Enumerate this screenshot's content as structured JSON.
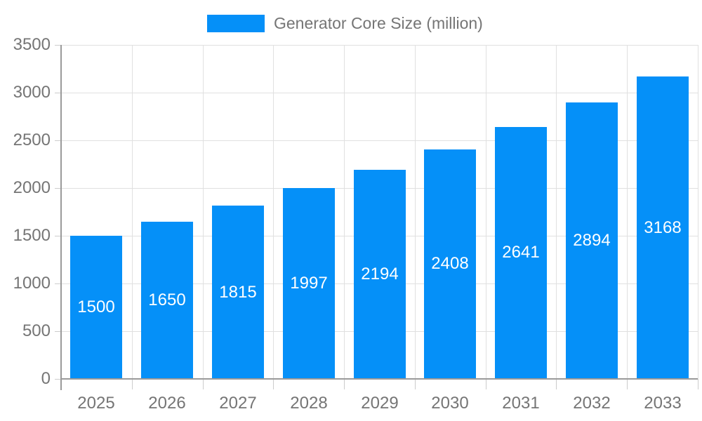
{
  "chart_data": {
    "type": "bar",
    "title": "Generator Core Size (million)",
    "categories": [
      "2025",
      "2026",
      "2027",
      "2028",
      "2029",
      "2030",
      "2031",
      "2032",
      "2033"
    ],
    "values": [
      1500,
      1650,
      1815,
      1997,
      2194,
      2408,
      2641,
      2894,
      3168
    ],
    "series": [
      {
        "name": "Generator Core Size (million)",
        "values": [
          1500,
          1650,
          1815,
          1997,
          2194,
          2408,
          2641,
          2894,
          3168
        ]
      }
    ],
    "xlabel": "",
    "ylabel": "",
    "ylim": [
      0,
      3500
    ],
    "yticks": [
      0,
      500,
      1000,
      1500,
      2000,
      2500,
      3000,
      3500
    ],
    "grid": true,
    "legend_position": "top",
    "value_labels": "inside-center",
    "colors": {
      "bar": "#0590F8",
      "value_label": "#FFFFFF",
      "axis_label": "#757575",
      "grid": "#E0E0E0",
      "axis_line": "#9A9A9A",
      "tick": "#CCCCCC",
      "background": "#FFFFFF"
    }
  }
}
